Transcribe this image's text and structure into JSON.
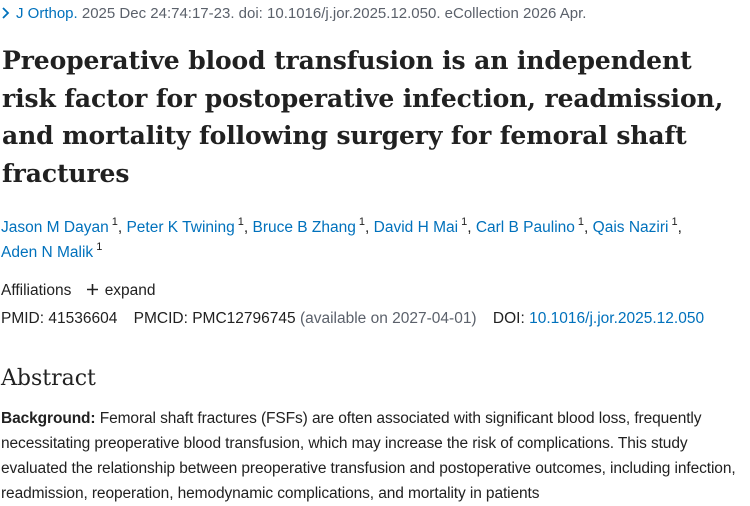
{
  "citation": {
    "journal": "J Orthop.",
    "details": "2025 Dec 24:74:17-23. doi: 10.1016/j.jor.2025.12.050. eCollection 2026 Apr."
  },
  "title": "Preoperative blood transfusion is an independent risk factor for postoperative infection, readmission, and mortality following surgery for femoral shaft fractures",
  "authors": [
    {
      "name": "Jason M Dayan",
      "aff": "1"
    },
    {
      "name": "Peter K Twining",
      "aff": "1"
    },
    {
      "name": "Bruce B Zhang",
      "aff": "1"
    },
    {
      "name": "David H Mai",
      "aff": "1"
    },
    {
      "name": "Carl B Paulino",
      "aff": "1"
    },
    {
      "name": "Qais Naziri",
      "aff": "1"
    },
    {
      "name": "Aden N Malik",
      "aff": "1"
    }
  ],
  "affiliations": {
    "label": "Affiliations",
    "expand_label": "expand"
  },
  "identifiers": {
    "pmid_label": "PMID:",
    "pmid": "41536604",
    "pmcid_label": "PMCID:",
    "pmcid": "PMC12796745",
    "pmcid_note": "(available on 2027-04-01)",
    "doi_label": "DOI:",
    "doi": "10.1016/j.jor.2025.12.050"
  },
  "abstract": {
    "heading": "Abstract",
    "section_label": "Background:",
    "text": "Femoral shaft fractures (FSFs) are often associated with significant blood loss, frequently necessitating preoperative blood transfusion, which may increase the risk of complications. This study evaluated the relationship between preoperative transfusion and postoperative outcomes, including infection, readmission, reoperation, hemodynamic complications, and mortality in patients"
  },
  "colors": {
    "link": "#0071bc",
    "text": "#212121",
    "muted": "#5b616b"
  },
  "icons": {
    "citation": "chevron-right-icon",
    "affiliations": "plus-icon"
  }
}
